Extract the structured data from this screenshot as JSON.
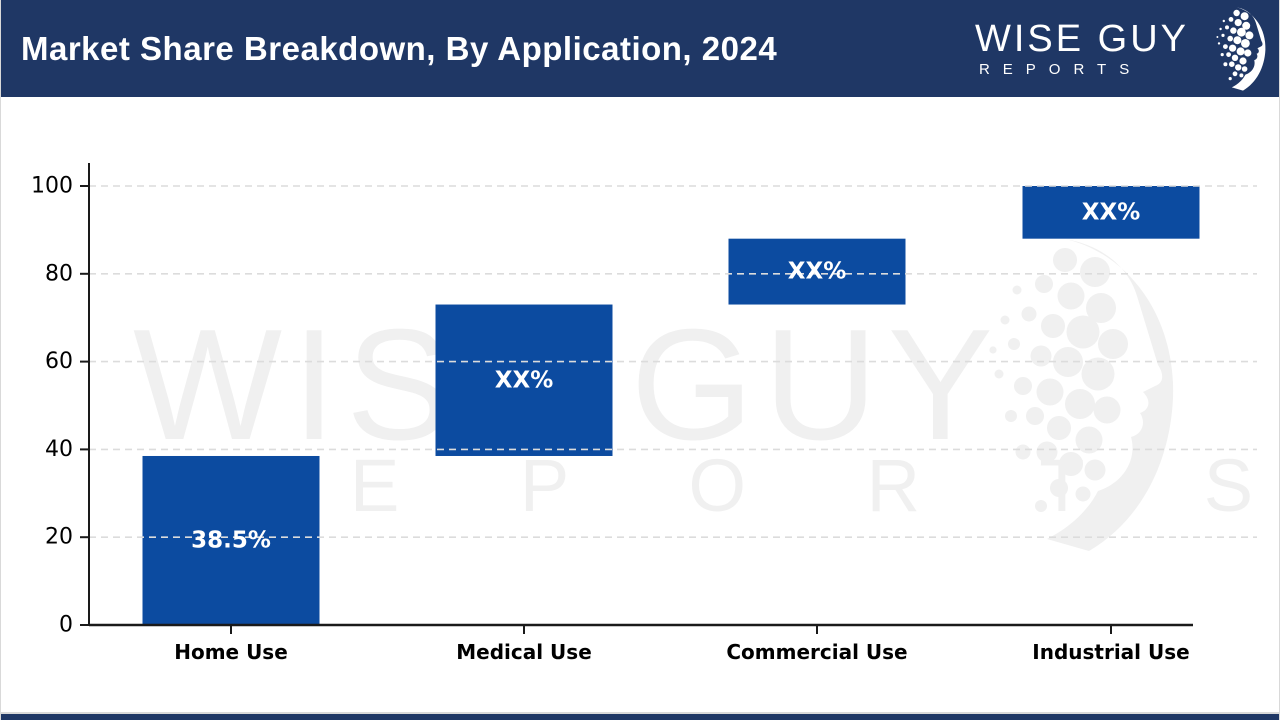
{
  "header": {
    "title": "Market Share Breakdown, By Application, 2024",
    "logo": {
      "wordmark": "WISE GUY",
      "subtext": "REPORTS",
      "subtext_spaced": "R E P O R T S"
    }
  },
  "watermark": {
    "wordmark": "WISE GUY",
    "subtext_spaced": "R E P O R T S"
  },
  "chart_data": {
    "type": "bar",
    "subtype": "floating-waterfall",
    "title": "Market Share Breakdown, By Application, 2024",
    "categories": [
      "Home Use",
      "Medical Use",
      "Commercial Use",
      "Industrial Use"
    ],
    "segments": [
      {
        "category": "Home Use",
        "start": 0,
        "end": 38.5,
        "size": 38.5,
        "label": "38.5%"
      },
      {
        "category": "Medical Use",
        "start": 38.5,
        "end": 73,
        "size": 34.5,
        "label": "XX%"
      },
      {
        "category": "Commercial Use",
        "start": 73,
        "end": 88,
        "size": 15,
        "label": "XX%"
      },
      {
        "category": "Industrial Use",
        "start": 88,
        "end": 100,
        "size": 12,
        "label": "XX%"
      }
    ],
    "yticks": [
      0,
      20,
      40,
      60,
      80,
      100
    ],
    "ylim": [
      0,
      100
    ],
    "xlabel": "",
    "ylabel": "",
    "grid": "horizontal-dashed",
    "legend": false,
    "colors": {
      "bar": "#0C4BA0",
      "bar_label": "#FFFFFF",
      "header_bg": "#1F3765",
      "grid": "#DCDCDC",
      "axis": "#1A1A1A",
      "watermark": "#F0F0F0"
    }
  }
}
